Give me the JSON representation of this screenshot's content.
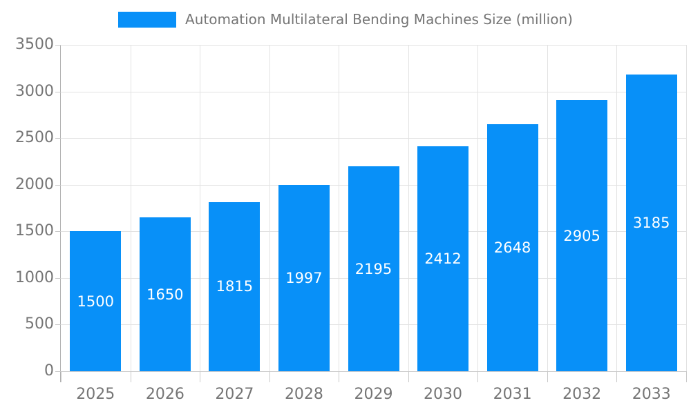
{
  "legend": {
    "label": "Automation Multilateral Bending Machines Size (million)"
  },
  "chart_data": {
    "type": "bar",
    "title": "Automation Multilateral Bending Machines Size (million)",
    "categories": [
      "2025",
      "2026",
      "2027",
      "2028",
      "2029",
      "2030",
      "2031",
      "2032",
      "2033"
    ],
    "values": [
      1500,
      1650,
      1815,
      1997,
      2195,
      2412,
      2648,
      2905,
      3185
    ],
    "value_labels": [
      "1500",
      "1650",
      "1815",
      "1997",
      "2195",
      "2412",
      "2648",
      "2905",
      "3185"
    ],
    "xlabel": "",
    "ylabel": "",
    "ylim": [
      0,
      3500
    ],
    "ytick_step": 500,
    "ytick_labels": [
      "0",
      "500",
      "1000",
      "1500",
      "2000",
      "2500",
      "3000",
      "3500"
    ],
    "grid": true,
    "legend_position": "top-center",
    "colors": {
      "bar": "#0890f8",
      "value_label": "#ffffff",
      "axis_text": "#757575",
      "gridline": "#e2e2e2",
      "axis_line": "#b0b0b0"
    }
  }
}
